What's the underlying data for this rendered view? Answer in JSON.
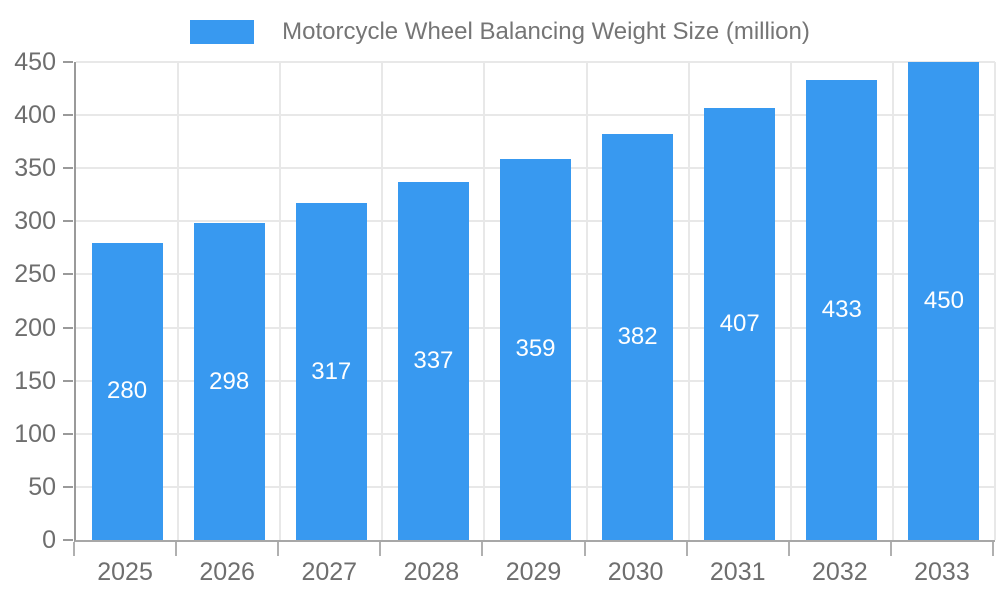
{
  "legend": {
    "label": "Motorcycle Wheel Balancing Weight Size (million)"
  },
  "chart_data": {
    "type": "bar",
    "title": "Motorcycle Wheel Balancing Weight Size (million)",
    "categories": [
      "2025",
      "2026",
      "2027",
      "2028",
      "2029",
      "2030",
      "2031",
      "2032",
      "2033"
    ],
    "values": [
      280,
      298,
      317,
      337,
      359,
      382,
      407,
      433,
      450
    ],
    "xlabel": "",
    "ylabel": "",
    "ylim": [
      0,
      450
    ],
    "yticks": [
      0,
      50,
      100,
      150,
      200,
      250,
      300,
      350,
      400,
      450
    ],
    "grid": true,
    "legend_position": "top-center",
    "value_labels_position": "inside-center",
    "colors": {
      "bar": "#3899F0",
      "bar_label_text": "#ffffff",
      "axis_text": "#6e6e6e",
      "legend_text": "#757575",
      "gridline": "#e8e8e8",
      "axis_line": "#9a9a9a"
    }
  }
}
